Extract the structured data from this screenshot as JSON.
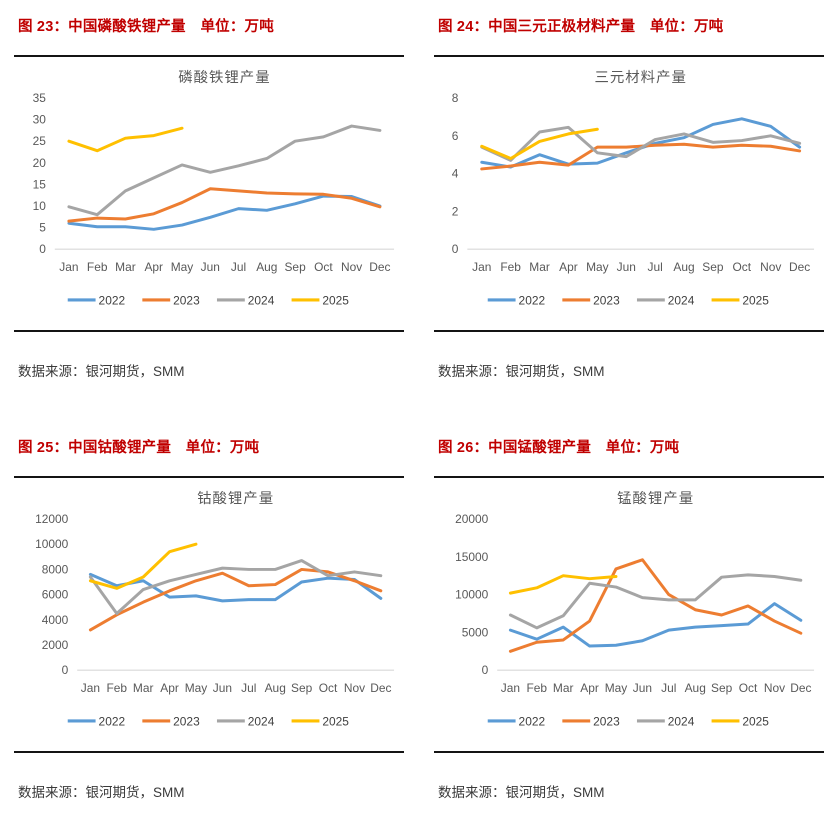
{
  "colors": {
    "header_red": "#c00000",
    "axis_text": "#595959",
    "axis_line": "#d9d9d9",
    "chart_title": "#595959",
    "legend_text": "#404040",
    "series_2022": "#5b9bd5",
    "series_2023": "#ed7d31",
    "series_2024": "#a5a5a5",
    "series_2025": "#ffc000"
  },
  "panels": [
    {
      "header": "图 23：中国磷酸铁锂产量　单位：万吨",
      "source": "数据来源：银河期货，SMM"
    },
    {
      "header": "图 24：中国三元正极材料产量　单位：万吨",
      "source": "数据来源：银河期货，SMM"
    },
    {
      "header": "图 25：中国钴酸锂产量　单位：万吨",
      "source": "数据来源：银河期货，SMM"
    },
    {
      "header": "图 26：中国锰酸锂产量　单位：万吨",
      "source": "数据来源：银河期货，SMM"
    }
  ],
  "chart_data": [
    {
      "type": "line",
      "title": "磷酸铁锂产量",
      "xlabel": "",
      "ylabel": "",
      "ylim": [
        0,
        35
      ],
      "ytick_step": 5,
      "grid": false,
      "legend_position": "bottom",
      "categories": [
        "Jan",
        "Feb",
        "Mar",
        "Apr",
        "May",
        "Jun",
        "Jul",
        "Aug",
        "Sep",
        "Oct",
        "Nov",
        "Dec"
      ],
      "series": [
        {
          "name": "2022",
          "color": "#5b9bd5",
          "values": [
            6,
            5.2,
            5.2,
            4.6,
            5.6,
            7.4,
            9.4,
            9,
            10.5,
            12.3,
            12.2,
            10
          ]
        },
        {
          "name": "2023",
          "color": "#ed7d31",
          "values": [
            6.5,
            7.2,
            7,
            8.2,
            10.8,
            14,
            13.5,
            13,
            12.8,
            12.7,
            11.8,
            9.8
          ]
        },
        {
          "name": "2024",
          "color": "#a5a5a5",
          "values": [
            9.8,
            8,
            13.5,
            16.5,
            19.5,
            17.8,
            19.3,
            21,
            25,
            26,
            28.5,
            27.5
          ]
        },
        {
          "name": "2025",
          "color": "#ffc000",
          "values": [
            25,
            22.8,
            25.7,
            26.3,
            28,
            null,
            null,
            null,
            null,
            null,
            null,
            null
          ]
        }
      ]
    },
    {
      "type": "line",
      "title": "三元材料产量",
      "xlabel": "",
      "ylabel": "",
      "ylim": [
        0,
        8
      ],
      "ytick_step": 2,
      "grid": false,
      "legend_position": "bottom",
      "categories": [
        "Jan",
        "Feb",
        "Mar",
        "Apr",
        "May",
        "Jun",
        "Jul",
        "Aug",
        "Sep",
        "Oct",
        "Nov",
        "Dec"
      ],
      "series": [
        {
          "name": "2022",
          "color": "#5b9bd5",
          "values": [
            4.6,
            4.35,
            5.0,
            4.5,
            4.55,
            5.1,
            5.6,
            5.9,
            6.6,
            6.9,
            6.5,
            5.4
          ]
        },
        {
          "name": "2023",
          "color": "#ed7d31",
          "values": [
            4.25,
            4.4,
            4.6,
            4.45,
            5.4,
            5.4,
            5.5,
            5.55,
            5.4,
            5.5,
            5.45,
            5.2
          ]
        },
        {
          "name": "2024",
          "color": "#a5a5a5",
          "values": [
            5.4,
            4.7,
            6.2,
            6.45,
            5.1,
            4.9,
            5.8,
            6.1,
            5.65,
            5.75,
            6.0,
            5.6
          ]
        },
        {
          "name": "2025",
          "color": "#ffc000",
          "values": [
            5.45,
            4.8,
            5.7,
            6.1,
            6.35,
            null,
            null,
            null,
            null,
            null,
            null,
            null
          ]
        }
      ]
    },
    {
      "type": "line",
      "title": "钴酸锂产量",
      "xlabel": "",
      "ylabel": "",
      "ylim": [
        0,
        12000
      ],
      "ytick_step": 2000,
      "grid": false,
      "legend_position": "bottom",
      "categories": [
        "Jan",
        "Feb",
        "Mar",
        "Apr",
        "May",
        "Jun",
        "Jul",
        "Aug",
        "Sep",
        "Oct",
        "Nov",
        "Dec"
      ],
      "series": [
        {
          "name": "2022",
          "color": "#5b9bd5",
          "values": [
            7600,
            6700,
            7100,
            5800,
            5900,
            5500,
            5600,
            5600,
            7000,
            7300,
            7200,
            5700
          ]
        },
        {
          "name": "2023",
          "color": "#ed7d31",
          "values": [
            3200,
            4400,
            5400,
            6300,
            7100,
            7700,
            6700,
            6800,
            8000,
            7800,
            7100,
            6300
          ]
        },
        {
          "name": "2024",
          "color": "#a5a5a5",
          "values": [
            7400,
            4500,
            6400,
            7100,
            7600,
            8100,
            8000,
            8000,
            8700,
            7500,
            7800,
            7500
          ]
        },
        {
          "name": "2025",
          "color": "#ffc000",
          "values": [
            7100,
            6500,
            7400,
            9400,
            10000,
            null,
            null,
            null,
            null,
            null,
            null,
            null
          ]
        }
      ]
    },
    {
      "type": "line",
      "title": "锰酸锂产量",
      "xlabel": "",
      "ylabel": "",
      "ylim": [
        0,
        20000
      ],
      "ytick_step": 5000,
      "grid": false,
      "legend_position": "bottom",
      "categories": [
        "Jan",
        "Feb",
        "Mar",
        "Apr",
        "May",
        "Jun",
        "Jul",
        "Aug",
        "Sep",
        "Oct",
        "Nov",
        "Dec"
      ],
      "series": [
        {
          "name": "2022",
          "color": "#5b9bd5",
          "values": [
            5300,
            4100,
            5700,
            3200,
            3300,
            3900,
            5300,
            5700,
            5900,
            6100,
            8800,
            6600
          ]
        },
        {
          "name": "2023",
          "color": "#ed7d31",
          "values": [
            2500,
            3700,
            4000,
            6500,
            13400,
            14600,
            10000,
            8000,
            7300,
            8500,
            6500,
            4900
          ]
        },
        {
          "name": "2024",
          "color": "#a5a5a5",
          "values": [
            7300,
            5600,
            7200,
            11500,
            11000,
            9600,
            9300,
            9300,
            12300,
            12600,
            12400,
            11900
          ]
        },
        {
          "name": "2025",
          "color": "#ffc000",
          "values": [
            10200,
            10900,
            12500,
            12100,
            12400,
            null,
            null,
            null,
            null,
            null,
            null,
            null
          ]
        }
      ]
    }
  ]
}
